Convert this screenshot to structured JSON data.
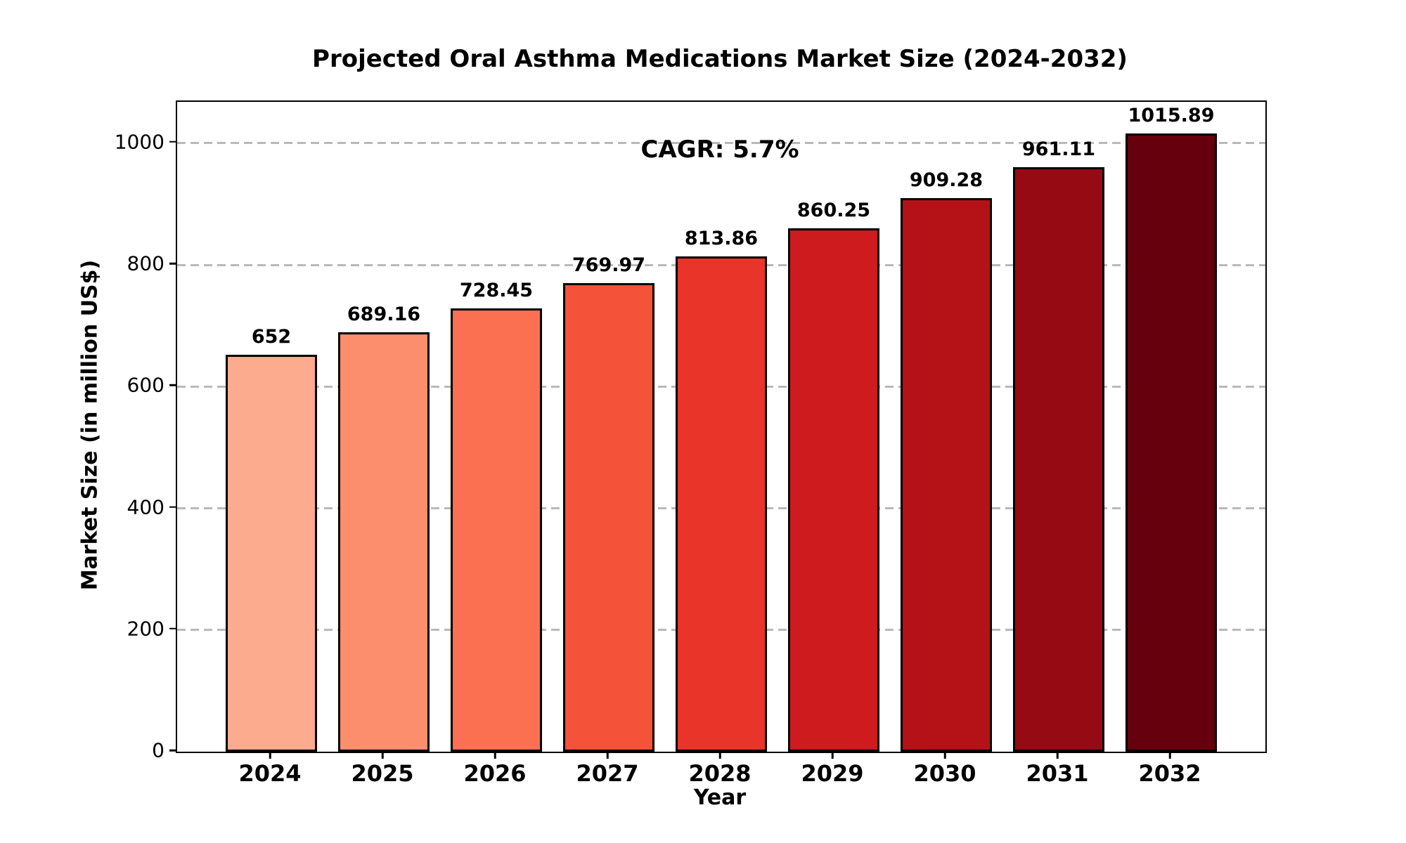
{
  "chart_data": {
    "type": "bar",
    "title": "Projected Oral Asthma Medications Market Size (2024-2032)",
    "xlabel": "Year",
    "ylabel": "Market Size (in million US$)",
    "annotation": "CAGR: 5.7%",
    "categories": [
      "2024",
      "2025",
      "2026",
      "2027",
      "2028",
      "2029",
      "2030",
      "2031",
      "2032"
    ],
    "values": [
      652,
      689.16,
      728.45,
      769.97,
      813.86,
      860.25,
      909.28,
      961.11,
      1015.89
    ],
    "value_labels": [
      "652",
      "689.16",
      "728.45",
      "769.97",
      "813.86",
      "860.25",
      "909.28",
      "961.11",
      "1015.89"
    ],
    "bar_colors": [
      "#FCAB8F",
      "#FC8D6D",
      "#FB7050",
      "#F5523A",
      "#E93529",
      "#CD1B1E",
      "#B41217",
      "#960B13",
      "#67000D"
    ],
    "bar_edge_color": "#000000",
    "grid_color": "#b9b9b9",
    "grid_style": "dashed horizontal",
    "yticks": [
      0,
      200,
      400,
      600,
      800,
      1000
    ],
    "ylim": [
      0,
      1068
    ],
    "legend": "none"
  }
}
